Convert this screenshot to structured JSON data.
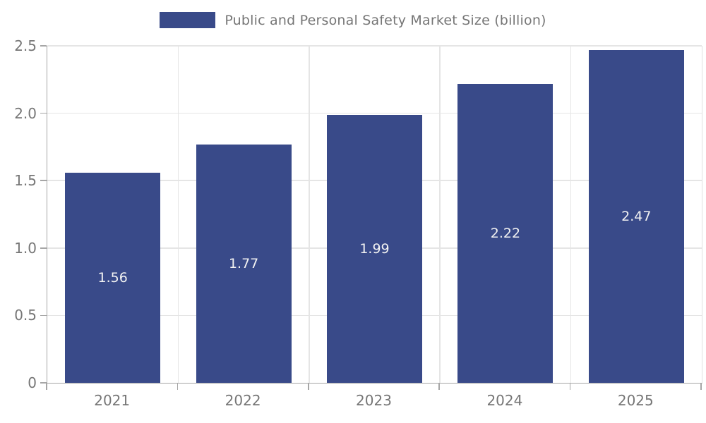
{
  "legend": {
    "label": "Public and Personal Safety Market Size (billion)",
    "swatch_color": "#394a89"
  },
  "chart_data": {
    "type": "bar",
    "title": "Public and Personal Safety Market Size (billion)",
    "categories": [
      "2021",
      "2022",
      "2023",
      "2024",
      "2025"
    ],
    "values": [
      1.56,
      1.77,
      1.99,
      2.22,
      2.47
    ],
    "value_labels": [
      "1.56",
      "1.77",
      "1.99",
      "2.22",
      "2.47"
    ],
    "xlabel": "",
    "ylabel": "",
    "ylim": [
      0,
      2.5
    ],
    "yticks": [
      0,
      0.5,
      1.0,
      1.5,
      2.0,
      2.5
    ],
    "ytick_labels": [
      "0",
      "0.5",
      "1.0",
      "1.5",
      "2.0",
      "2.5"
    ],
    "grid": true,
    "legend_position": "top-center",
    "bar_color": "#394a89",
    "value_label_color": "#f2f2f2",
    "grid_color": "#e5e5e5",
    "axis_color": "#a6a6a6",
    "tick_label_color": "#767676"
  }
}
